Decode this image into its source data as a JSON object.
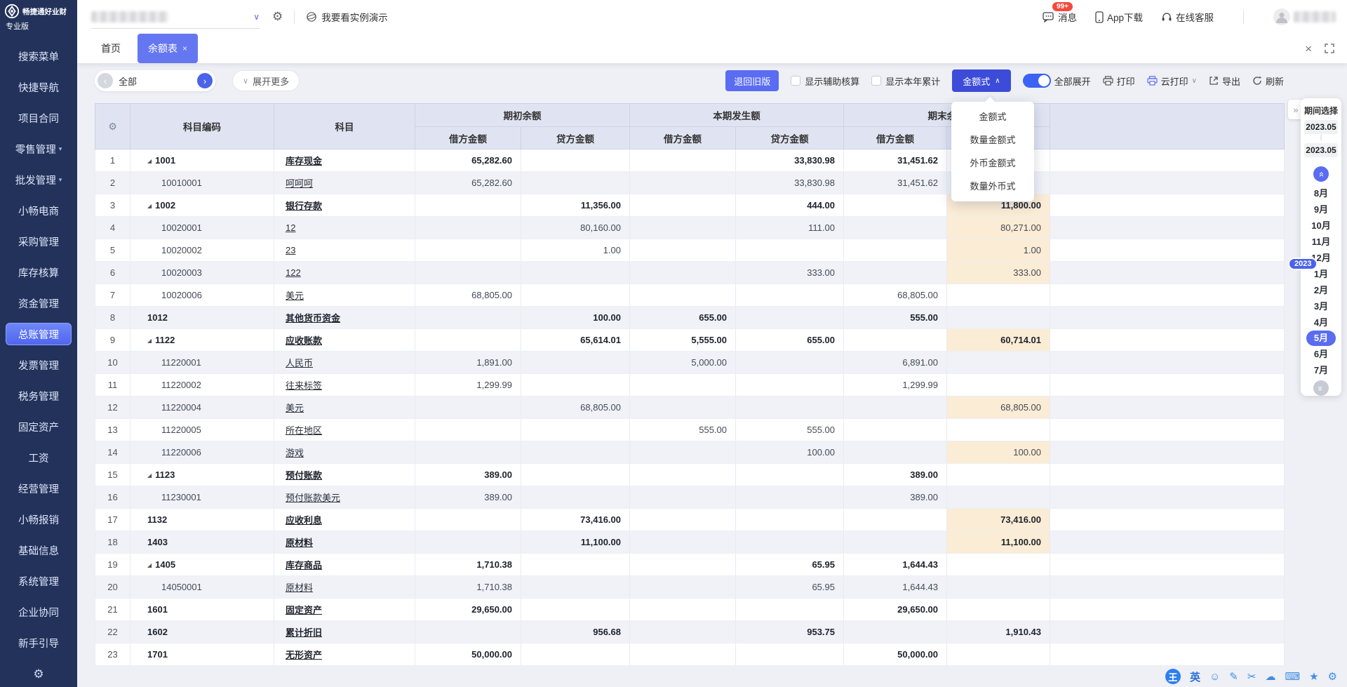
{
  "topbar": {
    "brand": "畅捷通好业财",
    "edition": "专业版",
    "demo_link": "我要看实例演示",
    "messages": "消息",
    "messages_badge": "99+",
    "app_download": "App下载",
    "online_service": "在线客服"
  },
  "tabs": {
    "home": "首页",
    "active": "余额表"
  },
  "filter": {
    "scope": "全部",
    "expand_more": "展开更多"
  },
  "toolbar": {
    "back_old": "退回旧版",
    "show_aux": "显示辅助核算",
    "show_ytd": "显示本年累计",
    "format_btn": "金额式",
    "expand_all": "全部展开",
    "print": "打印",
    "cloud_print": "云打印",
    "export": "导出",
    "refresh": "刷新"
  },
  "format_menu": [
    "金额式",
    "数量金额式",
    "外币金额式",
    "数量外币式"
  ],
  "sidebar": [
    {
      "label": "搜索菜单"
    },
    {
      "label": "快捷导航"
    },
    {
      "label": "项目合同"
    },
    {
      "label": "零售管理",
      "chevron": true
    },
    {
      "label": "批发管理",
      "chevron": true
    },
    {
      "label": "小畅电商"
    },
    {
      "label": "采购管理"
    },
    {
      "label": "库存核算"
    },
    {
      "label": "资金管理"
    },
    {
      "label": "总账管理",
      "active": true
    },
    {
      "label": "发票管理"
    },
    {
      "label": "税务管理"
    },
    {
      "label": "固定资产"
    },
    {
      "label": "工资"
    },
    {
      "label": "经营管理"
    },
    {
      "label": "小畅报销"
    },
    {
      "label": "基础信息"
    },
    {
      "label": "系统管理"
    },
    {
      "label": "企业协同"
    },
    {
      "label": "新手引导"
    }
  ],
  "table": {
    "col_code": "科目编码",
    "col_subject": "科目",
    "group_opening": "期初余额",
    "group_current": "本期发生额",
    "group_ending": "期末余额",
    "col_debit": "借方金额",
    "col_credit": "贷方金额",
    "rows": [
      {
        "n": 1,
        "code": "1001",
        "name": "库存现金",
        "parent": true,
        "expand": true,
        "v": [
          "65,282.60",
          "",
          "",
          "33,830.98",
          "31,451.62",
          ""
        ],
        "hl": -1
      },
      {
        "n": 2,
        "code": "10010001",
        "name": "呵呵呵",
        "parent": false,
        "expand": false,
        "v": [
          "65,282.60",
          "",
          "",
          "33,830.98",
          "31,451.62",
          ""
        ],
        "hl": -1
      },
      {
        "n": 3,
        "code": "1002",
        "name": "银行存款",
        "parent": true,
        "expand": true,
        "v": [
          "",
          "11,356.00",
          "",
          "444.00",
          "",
          "11,800.00"
        ],
        "hl": 5
      },
      {
        "n": 4,
        "code": "10020001",
        "name": "12",
        "parent": false,
        "expand": false,
        "v": [
          "",
          "80,160.00",
          "",
          "111.00",
          "",
          "80,271.00"
        ],
        "hl": 5
      },
      {
        "n": 5,
        "code": "10020002",
        "name": "23",
        "parent": false,
        "expand": false,
        "v": [
          "",
          "1.00",
          "",
          "",
          "",
          "1.00"
        ],
        "hl": 5
      },
      {
        "n": 6,
        "code": "10020003",
        "name": "122",
        "parent": false,
        "expand": false,
        "v": [
          "",
          "",
          "",
          "333.00",
          "",
          "333.00"
        ],
        "hl": 5
      },
      {
        "n": 7,
        "code": "10020006",
        "name": "美元",
        "parent": false,
        "expand": false,
        "v": [
          "68,805.00",
          "",
          "",
          "",
          "68,805.00",
          ""
        ],
        "hl": -1
      },
      {
        "n": 8,
        "code": "1012",
        "name": "其他货币资金",
        "parent": true,
        "expand": false,
        "v": [
          "",
          "100.00",
          "655.00",
          "",
          "555.00",
          ""
        ],
        "hl": -1
      },
      {
        "n": 9,
        "code": "1122",
        "name": "应收账款",
        "parent": true,
        "expand": true,
        "v": [
          "",
          "65,614.01",
          "5,555.00",
          "655.00",
          "",
          "60,714.01"
        ],
        "hl": 5
      },
      {
        "n": 10,
        "code": "11220001",
        "name": "人民币",
        "parent": false,
        "expand": false,
        "v": [
          "1,891.00",
          "",
          "5,000.00",
          "",
          "6,891.00",
          ""
        ],
        "hl": -1
      },
      {
        "n": 11,
        "code": "11220002",
        "name": "往来标签",
        "parent": false,
        "expand": false,
        "v": [
          "1,299.99",
          "",
          "",
          "",
          "1,299.99",
          ""
        ],
        "hl": -1
      },
      {
        "n": 12,
        "code": "11220004",
        "name": "美元",
        "parent": false,
        "expand": false,
        "v": [
          "",
          "68,805.00",
          "",
          "",
          "",
          "68,805.00"
        ],
        "hl": 5
      },
      {
        "n": 13,
        "code": "11220005",
        "name": "所在地区",
        "parent": false,
        "expand": false,
        "v": [
          "",
          "",
          "555.00",
          "555.00",
          "",
          ""
        ],
        "hl": -1
      },
      {
        "n": 14,
        "code": "11220006",
        "name": "游戏",
        "parent": false,
        "expand": false,
        "v": [
          "",
          "",
          "",
          "100.00",
          "",
          "100.00"
        ],
        "hl": 5
      },
      {
        "n": 15,
        "code": "1123",
        "name": "预付账款",
        "parent": true,
        "expand": true,
        "v": [
          "389.00",
          "",
          "",
          "",
          "389.00",
          ""
        ],
        "hl": -1
      },
      {
        "n": 16,
        "code": "11230001",
        "name": "预付账款美元",
        "parent": false,
        "expand": false,
        "v": [
          "389.00",
          "",
          "",
          "",
          "389.00",
          ""
        ],
        "hl": -1
      },
      {
        "n": 17,
        "code": "1132",
        "name": "应收利息",
        "parent": true,
        "expand": false,
        "v": [
          "",
          "73,416.00",
          "",
          "",
          "",
          "73,416.00"
        ],
        "hl": 5
      },
      {
        "n": 18,
        "code": "1403",
        "name": "原材料",
        "parent": true,
        "expand": false,
        "v": [
          "",
          "11,100.00",
          "",
          "",
          "",
          "11,100.00"
        ],
        "hl": 5
      },
      {
        "n": 19,
        "code": "1405",
        "name": "库存商品",
        "parent": true,
        "expand": true,
        "v": [
          "1,710.38",
          "",
          "",
          "65.95",
          "1,644.43",
          ""
        ],
        "hl": -1
      },
      {
        "n": 20,
        "code": "14050001",
        "name": "原材料",
        "parent": false,
        "expand": false,
        "v": [
          "1,710.38",
          "",
          "",
          "65.95",
          "1,644.43",
          ""
        ],
        "hl": -1
      },
      {
        "n": 21,
        "code": "1601",
        "name": "固定资产",
        "parent": true,
        "expand": false,
        "v": [
          "29,650.00",
          "",
          "",
          "",
          "29,650.00",
          ""
        ],
        "hl": -1
      },
      {
        "n": 22,
        "code": "1602",
        "name": "累计折旧",
        "parent": true,
        "expand": false,
        "v": [
          "",
          "956.68",
          "",
          "953.75",
          "",
          "1,910.43"
        ],
        "hl": -1
      },
      {
        "n": 23,
        "code": "1701",
        "name": "无形资产",
        "parent": true,
        "expand": false,
        "v": [
          "50,000.00",
          "",
          "",
          "",
          "50,000.00",
          ""
        ],
        "hl": -1
      }
    ]
  },
  "period_panel": {
    "title": "期间选择",
    "from": "2023.05",
    "to": "2023.05",
    "year_badge": "2023",
    "months": [
      "8月",
      "9月",
      "10月",
      "11月",
      "12月",
      "1月",
      "2月",
      "3月",
      "4月",
      "5月",
      "6月",
      "7月"
    ],
    "selected": "5月"
  },
  "taskbar": {
    "ime": "王",
    "lang": "英",
    "icons": [
      {
        "name": "emoji-icon",
        "glyph": "☺"
      },
      {
        "name": "pen-icon",
        "glyph": "✎"
      },
      {
        "name": "scissors-icon",
        "glyph": "✂"
      },
      {
        "name": "cloud-icon",
        "glyph": "☁"
      },
      {
        "name": "keyboard-icon",
        "glyph": "⌨"
      },
      {
        "name": "star-icon",
        "glyph": "★"
      },
      {
        "name": "gear-icon",
        "glyph": "⚙"
      }
    ]
  },
  "glyphs": {
    "chevron_down": "∨",
    "chevron_up": "∧",
    "left_arrow": "‹",
    "right_arrow": "›",
    "close": "×",
    "collapse": "»",
    "menu_chevron": "▾",
    "tree": "◢",
    "gear": "⚙",
    "dash": "|"
  },
  "colors": {
    "accent": "#5a6cf0",
    "accent_dark": "#3c4cd8",
    "navy": "#22325b",
    "highlight_cell": "#fbecd5",
    "tab_active": "#6577f0",
    "badge_red": "#f5483c"
  }
}
